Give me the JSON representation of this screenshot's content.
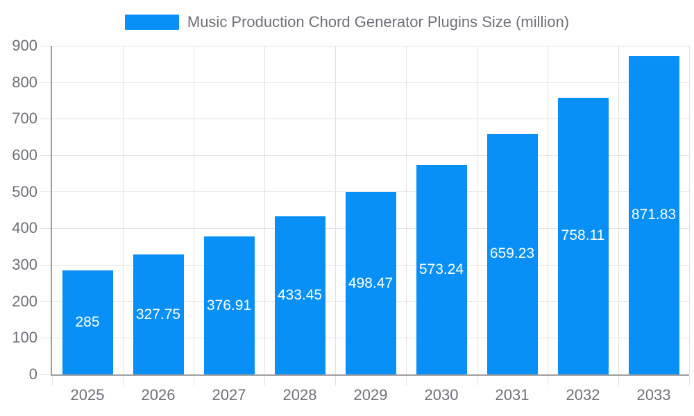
{
  "legend": {
    "label": "Music Production Chord Generator Plugins Size (million)"
  },
  "chart_data": {
    "type": "bar",
    "title": "Music Production Chord Generator Plugins Size (million)",
    "categories": [
      "2025",
      "2026",
      "2027",
      "2028",
      "2029",
      "2030",
      "2031",
      "2032",
      "2033"
    ],
    "values": [
      285,
      327.75,
      376.91,
      433.45,
      498.47,
      573.24,
      659.23,
      758.11,
      871.83
    ],
    "value_labels": [
      "285",
      "327.75",
      "376.91",
      "433.45",
      "498.47",
      "573.24",
      "659.23",
      "758.11",
      "871.83"
    ],
    "xlabel": "",
    "ylabel": "",
    "ylim": [
      0,
      900
    ],
    "ytick_interval": 100,
    "yticks": [
      "0",
      "100",
      "200",
      "300",
      "400",
      "500",
      "600",
      "700",
      "800",
      "900"
    ],
    "grid": true,
    "legend_position": "top-center",
    "value_label_position": "inside-center",
    "colors": {
      "bar": "#0990f7",
      "grid": "#e2e2e2",
      "axis_line": "#9e9e9e",
      "text": "#6e7079",
      "value_label": "#ffffff",
      "background": "#ffffff"
    }
  }
}
